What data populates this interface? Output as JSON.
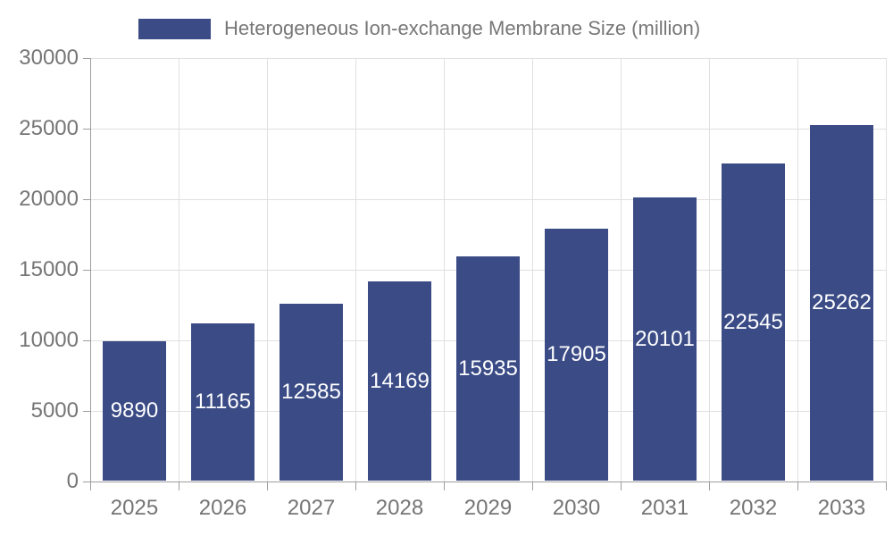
{
  "chart_data": {
    "type": "bar",
    "title": "Heterogeneous Ion-exchange Membrane Size (million)",
    "categories": [
      "2025",
      "2026",
      "2027",
      "2028",
      "2029",
      "2030",
      "2031",
      "2032",
      "2033"
    ],
    "values": [
      9890,
      11165,
      12585,
      14169,
      15935,
      17905,
      20101,
      22545,
      25262
    ],
    "xlabel": "",
    "ylabel": "",
    "ylim": [
      0,
      30000
    ],
    "yticks": [
      0,
      5000,
      10000,
      15000,
      20000,
      25000,
      30000
    ],
    "grid": true,
    "legend_position": "top",
    "value_labels": "inside-center-white",
    "colors": {
      "bar": "#3A4B86",
      "value_label": "#FFFFFF",
      "axis_label": "#757575",
      "legend_label": "#777777",
      "gridline": "#E0E0E0",
      "axis_line": "#9E9E9E",
      "background": "#FFFFFF"
    }
  }
}
